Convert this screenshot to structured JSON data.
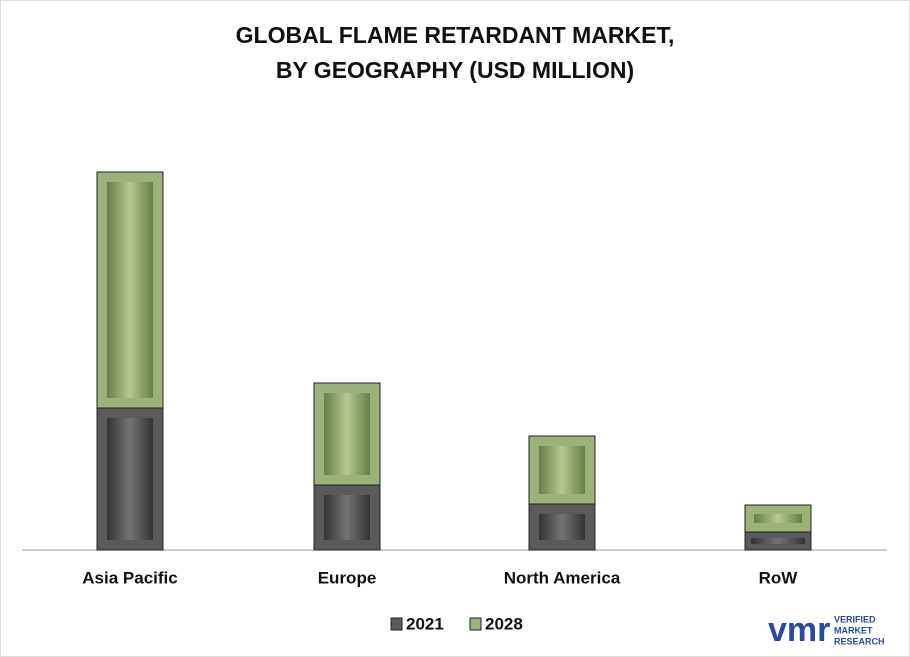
{
  "chart_data": {
    "type": "stacked_bar",
    "title": [
      "GLOBAL FLAME RETARDANT MARKET,",
      "BY GEOGRAPHY (USD MILLION)"
    ],
    "categories": [
      "Asia Pacific",
      "Europe",
      "North America",
      "RoW"
    ],
    "series": [
      {
        "name": "2021",
        "color": "#5a5a5a",
        "values": [
          142,
          65,
          46,
          18
        ]
      },
      {
        "name": "2028",
        "color": "#9db27a",
        "values": [
          236,
          102,
          68,
          27
        ]
      }
    ],
    "ylim": [
      0,
      400
    ]
  },
  "logo": {
    "mark": "vmr",
    "lines": [
      "VERIFIED",
      "MARKET",
      "RESEARCH"
    ]
  }
}
